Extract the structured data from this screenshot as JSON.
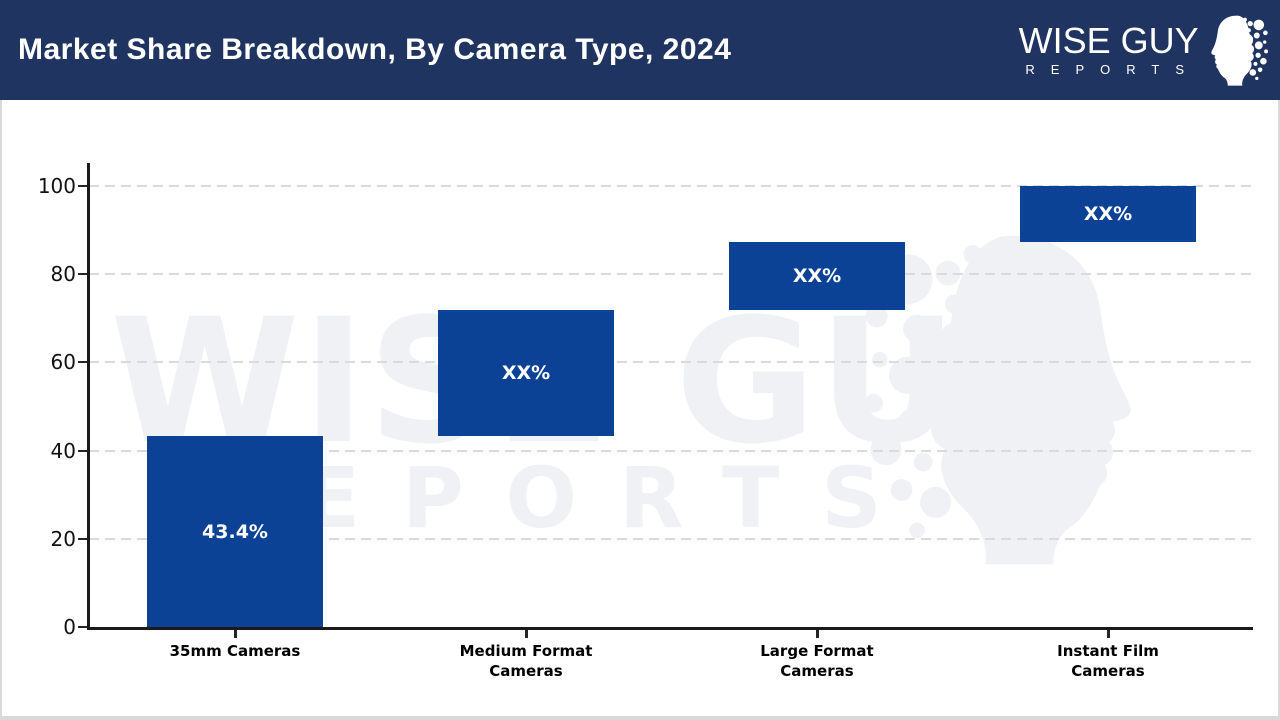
{
  "header": {
    "title": "Market Share Breakdown, By Camera Type, 2024",
    "background_color": "#1f3460",
    "text_color": "#ffffff",
    "logo": {
      "brand_top": "WISE GUY",
      "brand_bottom": "REPORTS"
    }
  },
  "watermark": {
    "line1": "WISE GUY",
    "line2": "REPORTS",
    "color": "#f0f1f5"
  },
  "chart_data": {
    "type": "bar",
    "variant": "waterfall",
    "title": "Market Share Breakdown, By Camera Type, 2024",
    "categories": [
      [
        "35mm Cameras"
      ],
      [
        "Medium Format",
        "Cameras"
      ],
      [
        "Large Format",
        "Cameras"
      ],
      [
        "Instant Film",
        "Cameras"
      ]
    ],
    "segments": [
      {
        "category": "35mm Cameras",
        "start": 0,
        "end": 43.4,
        "label": "43.4%"
      },
      {
        "category": "Medium Format Cameras",
        "start": 43.4,
        "end": 71.9,
        "label": "XX%"
      },
      {
        "category": "Large Format Cameras",
        "start": 71.9,
        "end": 87.3,
        "label": "XX%"
      },
      {
        "category": "Instant Film Cameras",
        "start": 87.3,
        "end": 100,
        "label": "XX%"
      }
    ],
    "ylim": [
      0,
      100
    ],
    "yticks": [
      0,
      20,
      40,
      60,
      80,
      100
    ],
    "xlabel": "",
    "ylabel": "",
    "grid": "horizontal-dashed",
    "legend": "none",
    "bar_color": "#0b4295",
    "bar_label_color": "#ffffff",
    "axis_color": "#1a1a1a"
  },
  "footer": {
    "bar_color": "#d9d9d9"
  }
}
